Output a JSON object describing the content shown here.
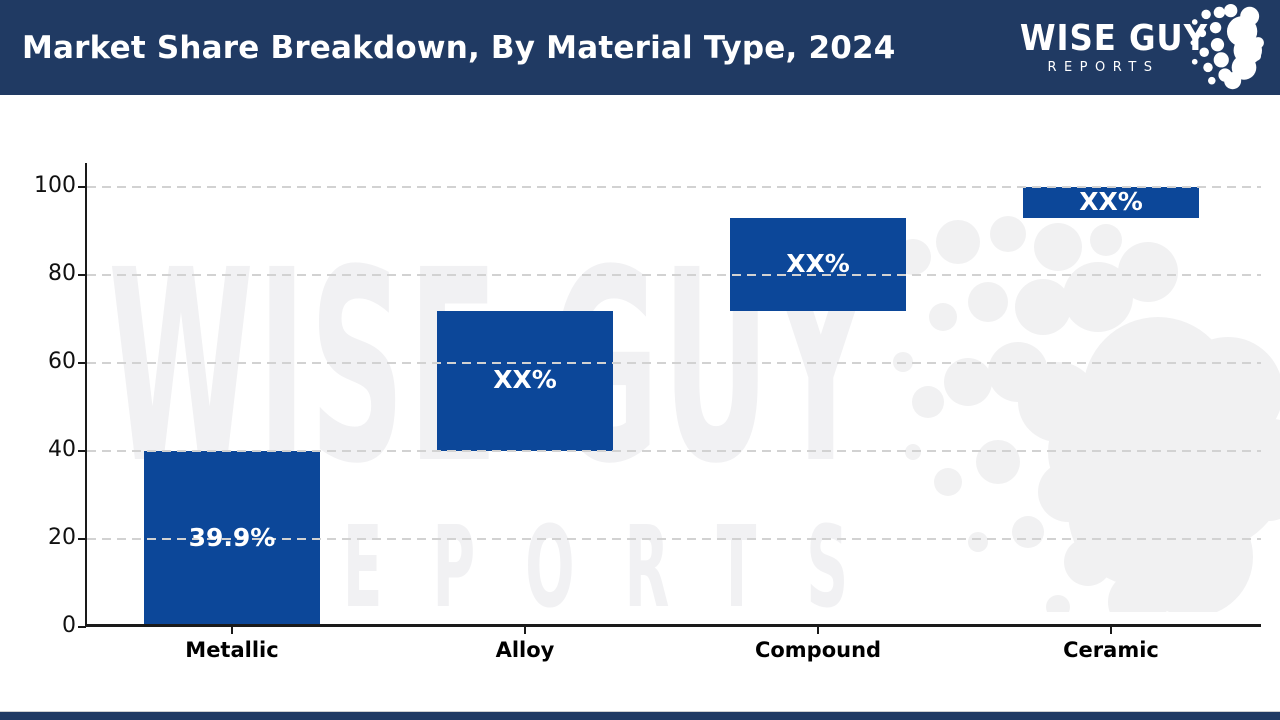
{
  "header": {
    "title": "Market Share Breakdown, By Material Type, 2024",
    "logo": {
      "line1": "WISE GUY",
      "line2": "REPORTS"
    }
  },
  "watermark": {
    "line1": "WISE GUY",
    "line2": "REPORTS"
  },
  "chart_data": {
    "type": "bar",
    "subtype": "waterfall",
    "title": "Market Share Breakdown, By Material Type, 2024",
    "categories": [
      "Metallic",
      "Alloy",
      "Compound",
      "Ceramic"
    ],
    "segments": [
      {
        "category": "Metallic",
        "start": 0,
        "end": 39.9,
        "value": 39.9,
        "label": "39.9%"
      },
      {
        "category": "Alloy",
        "start": 39.9,
        "end": 71.8,
        "value": 31.9,
        "label": "XX%"
      },
      {
        "category": "Compound",
        "start": 71.8,
        "end": 92.9,
        "value": 21.1,
        "label": "XX%"
      },
      {
        "category": "Ceramic",
        "start": 92.9,
        "end": 100,
        "value": 7.1,
        "label": "XX%"
      }
    ],
    "xlabel": "",
    "ylabel": "",
    "ylim": [
      0,
      100
    ],
    "yticks": [
      0,
      20,
      40,
      60,
      80,
      100
    ],
    "grid": "horizontal-dashed",
    "legend": "none",
    "bar_color": "#0c4799"
  },
  "colors": {
    "header_bg": "#203a63",
    "footer_bg": "#203a63",
    "bar": "#0c4799",
    "grid": "#d2d2d2",
    "axis": "#1a1a1a",
    "watermark": "#f1f1f3",
    "title_text": "#ffffff",
    "tick_text": "#111111"
  }
}
